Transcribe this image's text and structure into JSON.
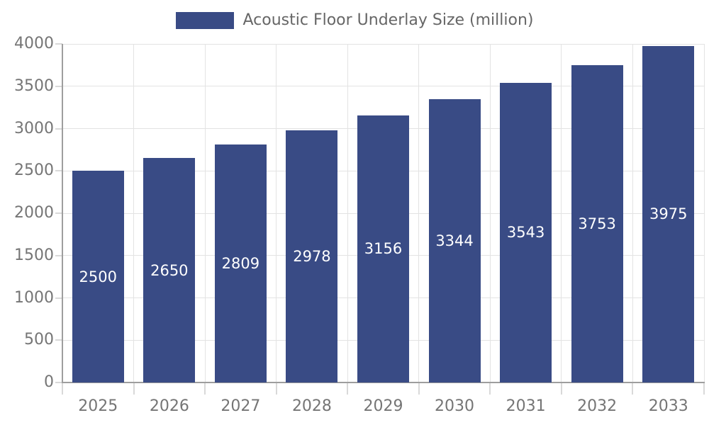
{
  "chart_data": {
    "type": "bar",
    "title": "Acoustic Floor Underlay Size (million)",
    "legend_label": "Acoustic Floor Underlay Size (million)",
    "legend_position": "top-center",
    "categories": [
      "2025",
      "2026",
      "2027",
      "2028",
      "2029",
      "2030",
      "2031",
      "2032",
      "2033"
    ],
    "values": [
      2500,
      2650,
      2809,
      2978,
      3156,
      3344,
      3543,
      3753,
      3975
    ],
    "xlabel": "",
    "ylabel": "",
    "ylim": [
      0,
      4000
    ],
    "yticks": [
      0,
      500,
      1000,
      1500,
      2000,
      2500,
      3000,
      3500,
      4000
    ],
    "grid": "on",
    "value_labels_position": "inside-center",
    "colors": {
      "bar": "#394B85",
      "grid": "#E3E3E3",
      "tick": "#D9D9D9",
      "spine": "#9E9E9E",
      "axis_text": "#757575",
      "legend_text": "#666666",
      "value_label": "#FFFFFF"
    }
  }
}
